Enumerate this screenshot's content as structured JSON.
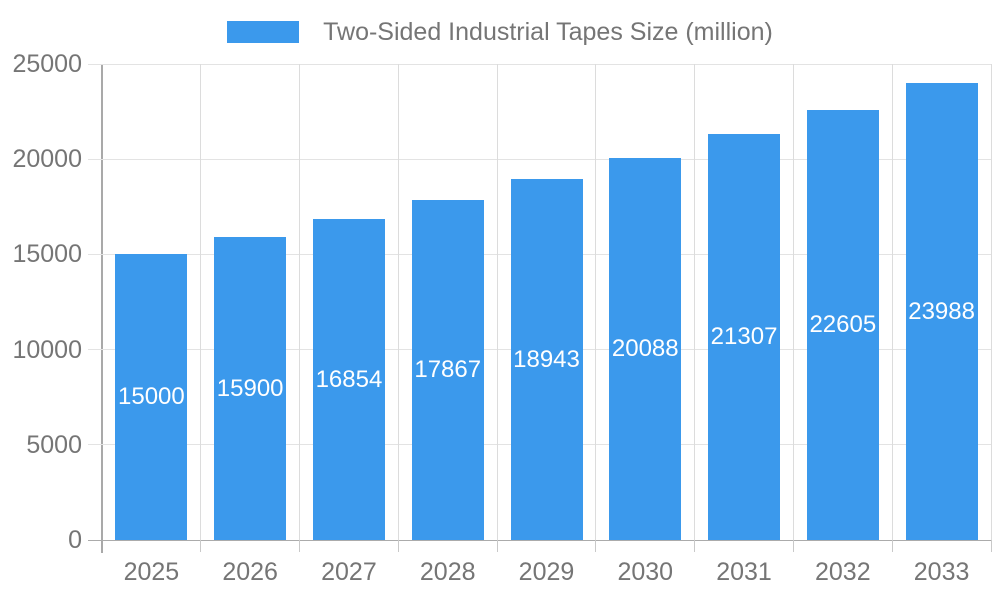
{
  "chart_data": {
    "type": "bar",
    "title": "",
    "legend_label": "Two-Sided Industrial Tapes Size (million)",
    "legend_position": "top",
    "categories": [
      "2025",
      "2026",
      "2027",
      "2028",
      "2029",
      "2030",
      "2031",
      "2032",
      "2033"
    ],
    "values": [
      15000,
      15900,
      16854,
      17867,
      18943,
      20088,
      21307,
      22605,
      23988
    ],
    "series": [
      {
        "name": "Two-Sided Industrial Tapes Size (million)",
        "values": [
          15000,
          15900,
          16854,
          17867,
          18943,
          20088,
          21307,
          22605,
          23988
        ]
      }
    ],
    "xlabel": "",
    "ylabel": "",
    "ylim": [
      0,
      25000
    ],
    "y_ticks": [
      0,
      5000,
      10000,
      15000,
      20000,
      25000
    ],
    "grid": true,
    "value_labels_inside_bars": true,
    "colors": {
      "bar": "#3B99EC",
      "value_label": "#FFFFFF",
      "axis_text": "#757575",
      "grid_line": "#E3E3E3",
      "vertical_grid_line": "#DCDCDC",
      "axis_line": "#A9A9A9",
      "baseline": "#ABABAB",
      "background": "#FFFFFF"
    }
  }
}
